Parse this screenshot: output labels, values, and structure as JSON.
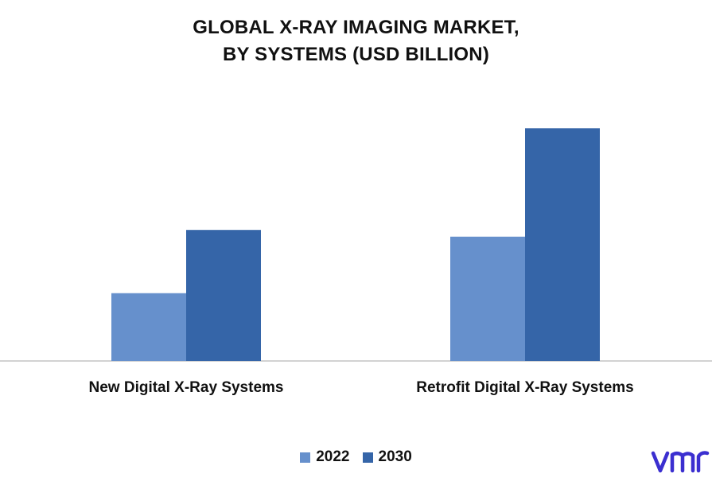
{
  "chart_data": {
    "type": "bar",
    "title": [
      "GLOBAL X-RAY IMAGING MARKET,",
      "BY SYSTEMS (USD BILLION)"
    ],
    "categories": [
      "New Digital X-Ray Systems",
      "Retrofit Digital X-Ray Systems"
    ],
    "series": [
      {
        "name": "2022",
        "values": [
          3.0,
          5.5
        ],
        "color": "#6690cc"
      },
      {
        "name": "2030",
        "values": [
          5.8,
          10.3
        ],
        "color": "#3565a8"
      }
    ],
    "ylim": [
      0,
      12
    ],
    "grid": false,
    "legend": "bottom-center"
  },
  "logo": {
    "name": "vmr-logo-icon",
    "color": "#3b2fd0"
  }
}
